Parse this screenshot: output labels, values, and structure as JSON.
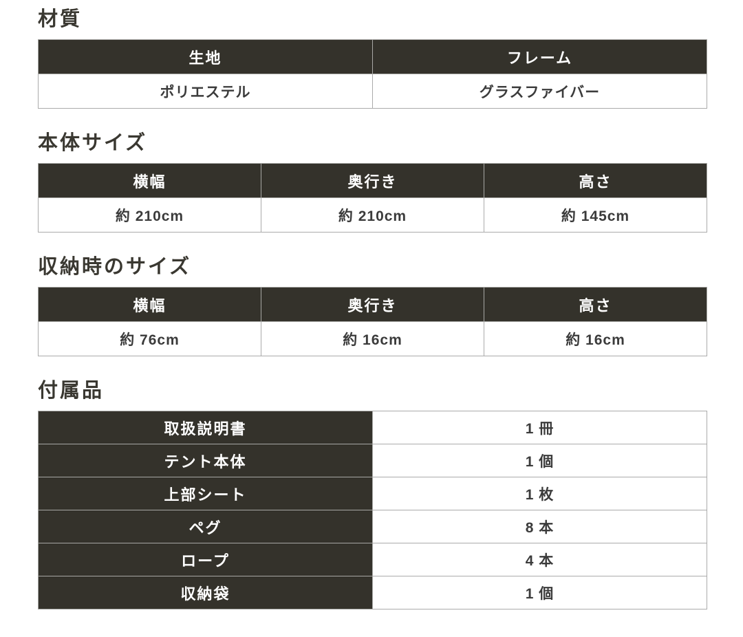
{
  "colors": {
    "page_background": "#ffffff",
    "header_cell_background": "#34322b",
    "header_cell_text": "#ffffff",
    "value_cell_text": "#3b3b3b",
    "section_title_text": "#3a3831",
    "cell_border": "#aaaaaa"
  },
  "sections": [
    {
      "title": "材質",
      "headers": [
        "生地",
        "フレーム"
      ],
      "values": [
        "ポリエステル",
        "グラスファイバー"
      ]
    },
    {
      "title": "本体サイズ",
      "headers": [
        "横幅",
        "奥行き",
        "高さ"
      ],
      "values": [
        "約 210cm",
        "約 210cm",
        "約 145cm"
      ]
    },
    {
      "title": "収納時のサイズ",
      "headers": [
        "横幅",
        "奥行き",
        "高さ"
      ],
      "values": [
        "約 76cm",
        "約 16cm",
        "約 16cm"
      ]
    },
    {
      "title": "付属品",
      "rows": [
        {
          "label": "取扱説明書",
          "value": "1 冊"
        },
        {
          "label": "テント本体",
          "value": "1 個"
        },
        {
          "label": "上部シート",
          "value": "1 枚"
        },
        {
          "label": "ペグ",
          "value": "8 本"
        },
        {
          "label": "ロープ",
          "value": "4 本"
        },
        {
          "label": "収納袋",
          "value": "1 個"
        }
      ]
    }
  ]
}
